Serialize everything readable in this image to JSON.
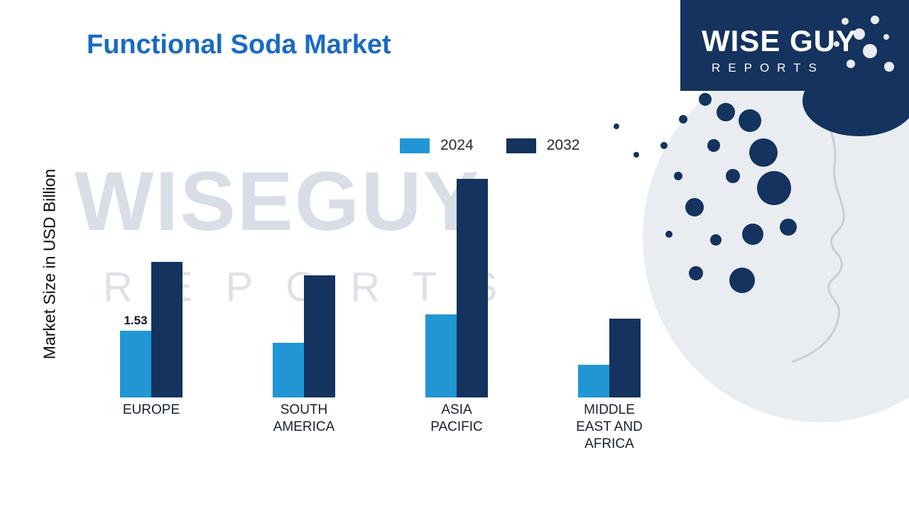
{
  "title": "Functional Soda Market",
  "logo": {
    "name": "WISE GUY",
    "sub": "REPORTS"
  },
  "watermark": {
    "line1": "WISEGUY",
    "line2": "REPORTS"
  },
  "legend": {
    "items": [
      {
        "label": "2024",
        "color": "#2196d4"
      },
      {
        "label": "2032",
        "color": "#14335e"
      }
    ]
  },
  "chart_data": {
    "type": "bar",
    "title": "Functional Soda Market",
    "categories": [
      "EUROPE",
      "SOUTH AMERICA",
      "ASIA PACIFIC",
      "MIDDLE EAST AND AFRICA"
    ],
    "series": [
      {
        "name": "2024",
        "color": "#2196d4",
        "values": [
          1.53,
          1.25,
          1.9,
          0.75
        ]
      },
      {
        "name": "2032",
        "color": "#14335e",
        "values": [
          3.1,
          2.8,
          5.0,
          1.8
        ]
      }
    ],
    "xlabel": "",
    "ylabel": "Market Size in USD Billion",
    "ylim": [
      0,
      5
    ],
    "grid": false,
    "legend_position": "top",
    "annotations": [
      {
        "series": "2024",
        "category": "EUROPE",
        "text": "1.53"
      }
    ]
  }
}
